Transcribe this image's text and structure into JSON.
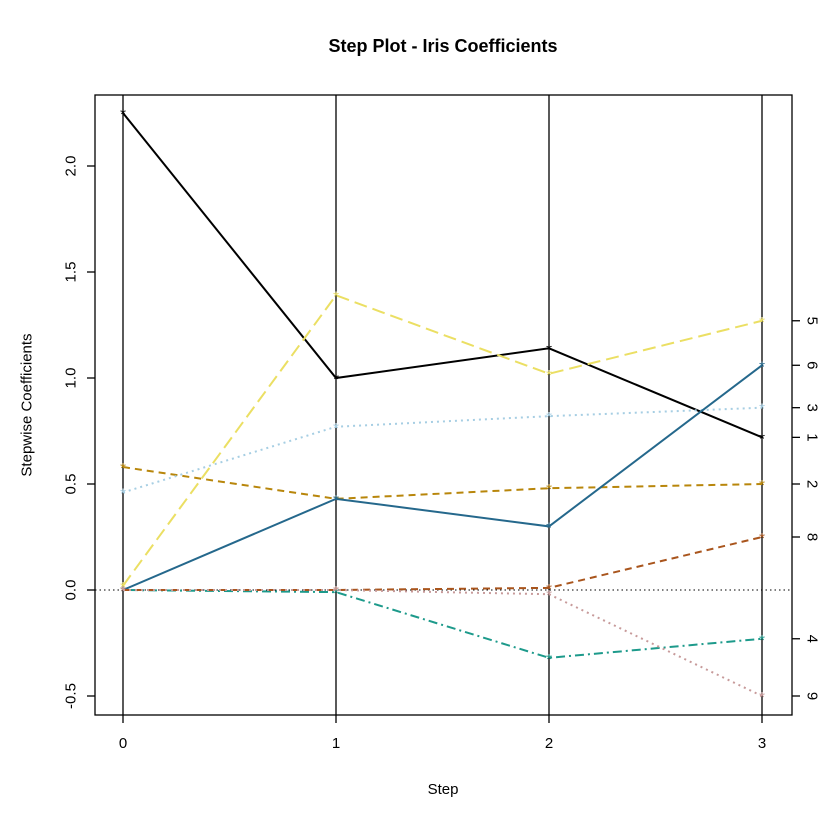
{
  "figure": {
    "title": "Step Plot - Iris Coefficients",
    "xlabel": "Step",
    "ylabel": "Stepwise Coefficients"
  },
  "chart_data": {
    "type": "line",
    "title": "Step Plot - Iris Coefficients",
    "xlabel": "Step",
    "ylabel": "Stepwise Coefficients",
    "x": [
      0,
      1,
      2,
      3
    ],
    "xtick_labels": [
      "0",
      "1",
      "2",
      "3"
    ],
    "yticks": [
      -0.5,
      0.0,
      0.5,
      1.0,
      1.5,
      2.0
    ],
    "ylim": [
      -0.62,
      2.33
    ],
    "grid": false,
    "marker": "*",
    "zero_reference_line": 0,
    "step_vlines": [
      0,
      1,
      2,
      3
    ],
    "legend_position": "right-axis",
    "series": [
      {
        "label": "1",
        "color": "#000000",
        "linestyle": "solid",
        "values": [
          2.25,
          1.0,
          1.14,
          0.72
        ]
      },
      {
        "label": "2",
        "color": "#B8860B",
        "linestyle": "dashed",
        "values": [
          0.58,
          0.43,
          0.48,
          0.5
        ]
      },
      {
        "label": "3",
        "color": "#A6CEE3",
        "linestyle": "dotted",
        "values": [
          0.46,
          0.77,
          0.82,
          0.86
        ]
      },
      {
        "label": "4",
        "color": "#1D9A8B",
        "linestyle": "dashdot",
        "values": [
          0.0,
          -0.01,
          -0.32,
          -0.23
        ]
      },
      {
        "label": "5",
        "color": "#EBDF63",
        "linestyle": "longdash",
        "values": [
          0.02,
          1.39,
          1.02,
          1.27
        ]
      },
      {
        "label": "6",
        "color": "#25688C",
        "linestyle": "solid",
        "values": [
          0.0,
          0.43,
          0.3,
          1.06
        ]
      },
      {
        "label": "8",
        "color": "#A9551D",
        "linestyle": "dashed",
        "values": [
          0.0,
          0.0,
          0.01,
          0.25
        ]
      },
      {
        "label": "9",
        "color": "#C79A9A",
        "linestyle": "dotted",
        "values": [
          0.0,
          0.0,
          -0.02,
          -0.5
        ]
      }
    ]
  }
}
